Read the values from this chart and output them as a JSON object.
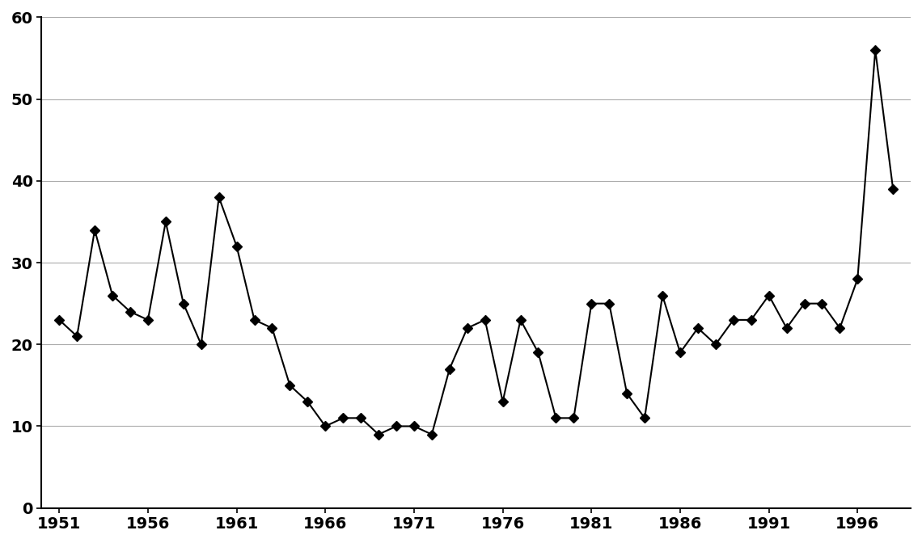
{
  "years": [
    1951,
    1952,
    1953,
    1954,
    1955,
    1956,
    1957,
    1958,
    1959,
    1960,
    1961,
    1962,
    1963,
    1964,
    1965,
    1966,
    1967,
    1968,
    1969,
    1970,
    1971,
    1972,
    1973,
    1974,
    1975,
    1976,
    1977,
    1978,
    1979,
    1980,
    1981,
    1982,
    1983,
    1984,
    1985,
    1986,
    1987,
    1988,
    1989,
    1990,
    1991,
    1992,
    1993,
    1994,
    1995,
    1996,
    1997,
    1998
  ],
  "values": [
    23,
    21,
    34,
    26,
    24,
    23,
    35,
    25,
    20,
    38,
    32,
    23,
    22,
    15,
    13,
    10,
    11,
    11,
    9,
    10,
    10,
    9,
    17,
    22,
    23,
    13,
    23,
    19,
    11,
    11,
    25,
    25,
    14,
    11,
    26,
    19,
    22,
    20,
    23,
    23,
    26,
    22,
    25,
    25,
    22,
    28,
    56,
    39
  ],
  "line_color": "#000000",
  "marker_color": "#000000",
  "marker": "D",
  "marker_size": 6,
  "linewidth": 1.5,
  "ylim": [
    0,
    60
  ],
  "yticks": [
    0,
    10,
    20,
    30,
    40,
    50,
    60
  ],
  "xticks": [
    1951,
    1956,
    1961,
    1966,
    1971,
    1976,
    1981,
    1986,
    1991,
    1996
  ],
  "xlim": [
    1950,
    1999
  ],
  "grid_color": "#aaaaaa",
  "background_color": "#ffffff"
}
